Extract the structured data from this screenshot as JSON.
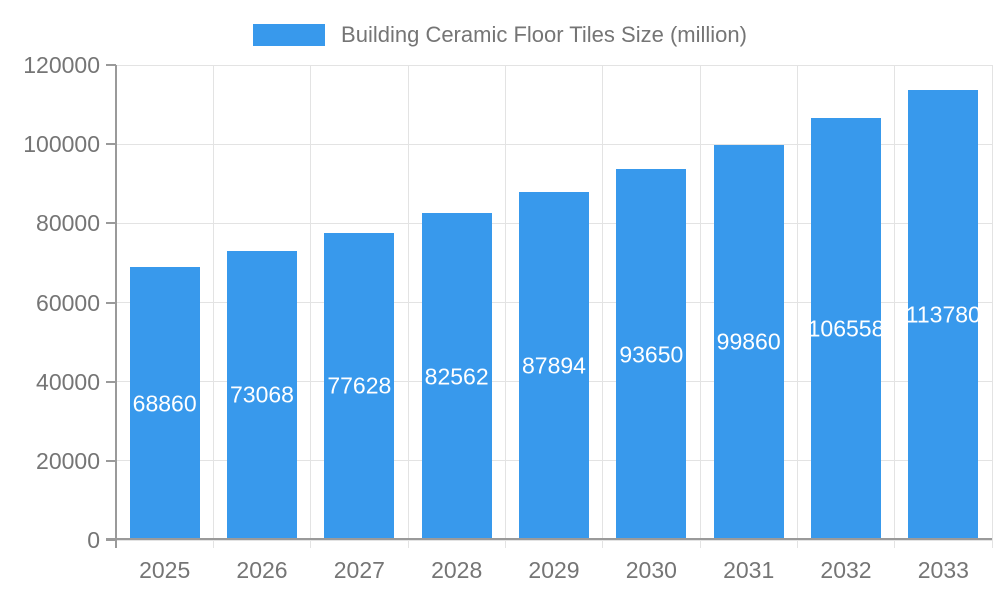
{
  "chart_data": {
    "type": "bar",
    "title": "",
    "legend": "Building Ceramic Floor Tiles Size (million)",
    "legend_position": "top",
    "categories": [
      "2025",
      "2026",
      "2027",
      "2028",
      "2029",
      "2030",
      "2031",
      "2032",
      "2033"
    ],
    "values": [
      68860,
      73068,
      77628,
      82562,
      87894,
      93650,
      99860,
      106558,
      113780
    ],
    "xlabel": "",
    "ylabel": "",
    "ylim": [
      0,
      120000
    ],
    "yticks": [
      0,
      20000,
      40000,
      60000,
      80000,
      100000,
      120000
    ],
    "grid": true,
    "value_labels": "inside-center-white",
    "colors": {
      "bar": "#3899ec",
      "grid": "#e3e3e3",
      "axis": "#9a9a9a",
      "text": "#757575",
      "value_label": "#ffffff",
      "background": "#ffffff"
    }
  }
}
